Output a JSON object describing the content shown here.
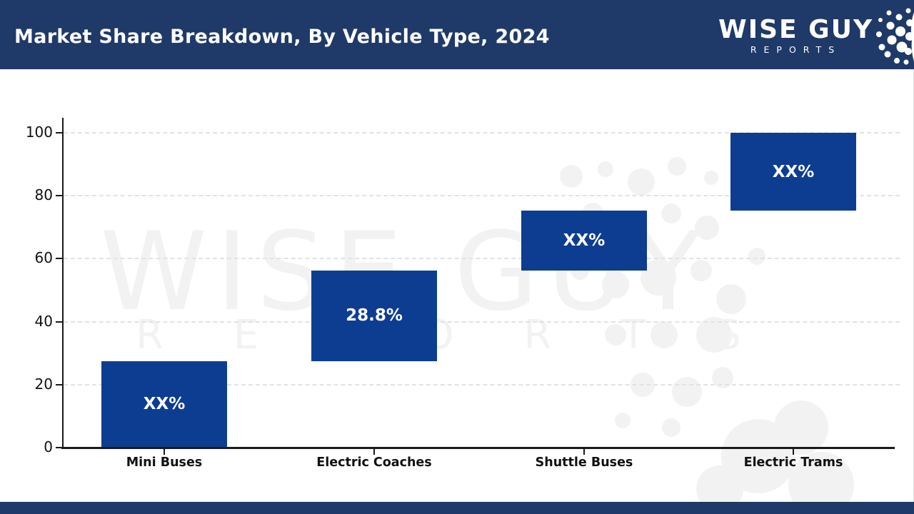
{
  "header": {
    "title": "Market Share Breakdown, By Vehicle Type, 2024",
    "logo": {
      "line1": "WISE GUY",
      "line2": "REPORTS"
    }
  },
  "watermark": {
    "line1": "WISE GUY",
    "line2": "R E P O R T S"
  },
  "chart_data": {
    "type": "bar",
    "subtype": "waterfall-floating-bars",
    "title": "Market Share Breakdown, By Vehicle Type, 2024",
    "xlabel": "",
    "ylabel": "",
    "categories": [
      "Mini Buses",
      "Electric Coaches",
      "Shuttle Buses",
      "Electric Trams"
    ],
    "segments": [
      {
        "category": "Mini Buses",
        "start": 0,
        "end": 27.5,
        "value_label": "XX%"
      },
      {
        "category": "Electric Coaches",
        "start": 27.5,
        "end": 56.3,
        "value_label": "28.8%"
      },
      {
        "category": "Shuttle Buses",
        "start": 56.3,
        "end": 75.2,
        "value_label": "XX%"
      },
      {
        "category": "Electric Trams",
        "start": 75.2,
        "end": 100,
        "value_label": "XX%"
      }
    ],
    "y_ticks": [
      0,
      20,
      40,
      60,
      80,
      100
    ],
    "ylim": [
      0,
      105
    ],
    "grid": "horizontal-dashed",
    "legend": "none",
    "bar_color": "#0d3d91",
    "bar_label_color": "#ffffff",
    "axis_color": "#1a1a1a",
    "gridline_color": "#e2e2e2"
  },
  "colors": {
    "header_bg": "#1f3a68",
    "footer_bg": "#1f3a68",
    "watermark": "#f2f2f2",
    "title_text": "#ffffff"
  }
}
